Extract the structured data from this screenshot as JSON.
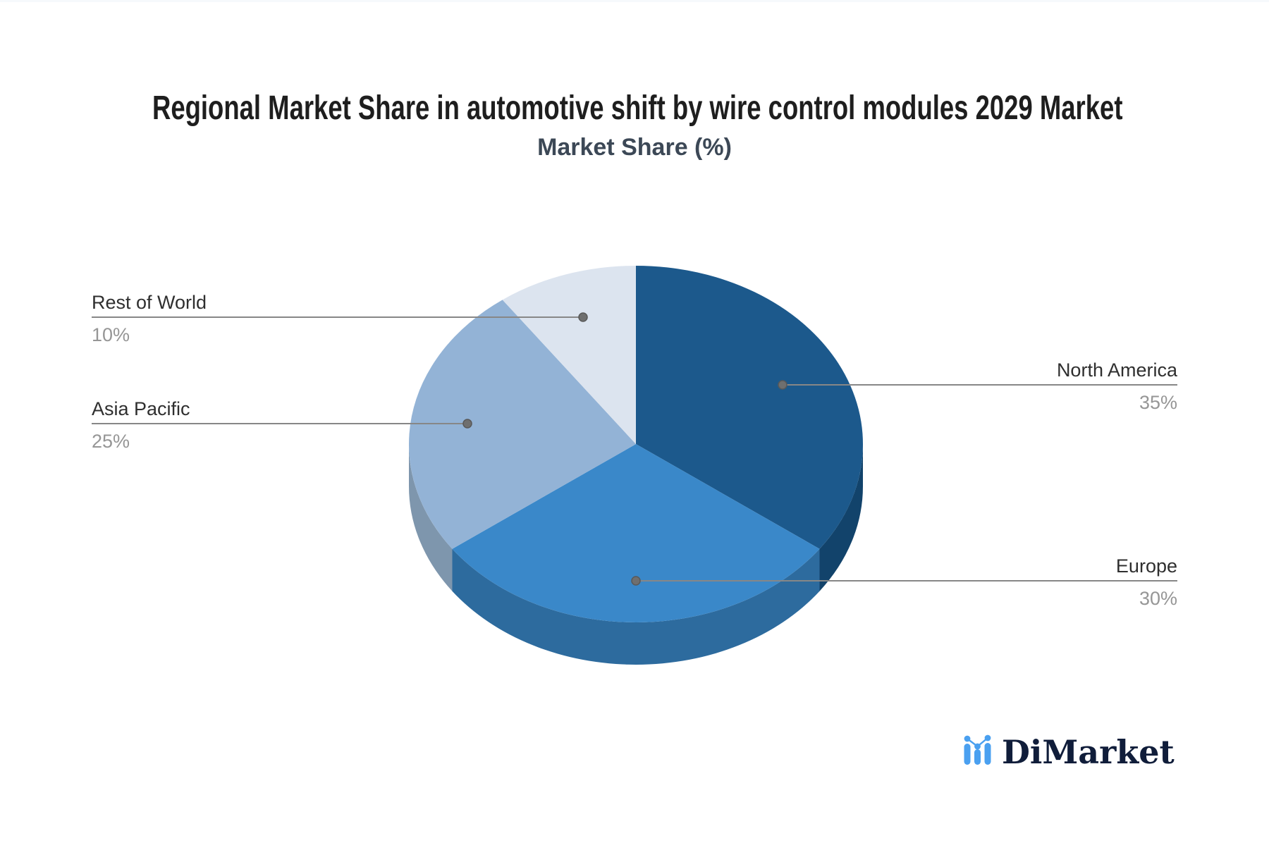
{
  "header": {
    "title": "Regional Market Share in automotive shift by wire control modules 2029 Market",
    "subtitle": "Market Share (%)"
  },
  "chart_data": {
    "type": "pie",
    "style": "3d",
    "title": "Regional Market Share in automotive shift by wire control modules 2029 Market",
    "subtitle": "Market Share (%)",
    "unit": "%",
    "start_position": "top",
    "direction": "clockwise",
    "legend": "none",
    "slices": [
      {
        "name": "North America",
        "value": 35,
        "label": "35%",
        "color": "#1c598c",
        "side_color": "#12436b",
        "label_side": "right"
      },
      {
        "name": "Europe",
        "value": 30,
        "label": "30%",
        "color": "#3a88c9",
        "side_color": "#2d6b9e",
        "label_side": "right"
      },
      {
        "name": "Asia Pacific",
        "value": 25,
        "label": "25%",
        "color": "#93b3d6",
        "side_color": "#7e96ad",
        "label_side": "left"
      },
      {
        "name": "Rest of World",
        "value": 10,
        "label": "10%",
        "color": "#dce4ef",
        "side_color": "#b9c4d6",
        "label_side": "left"
      }
    ],
    "leader_line_color": "#878787",
    "leader_dot_color": "#6f6f6f"
  },
  "logo": {
    "text": "DiMarket",
    "icon": "bar-line-chart-icon",
    "icon_color": "#4aa0f0",
    "text_color": "#101d3a"
  }
}
